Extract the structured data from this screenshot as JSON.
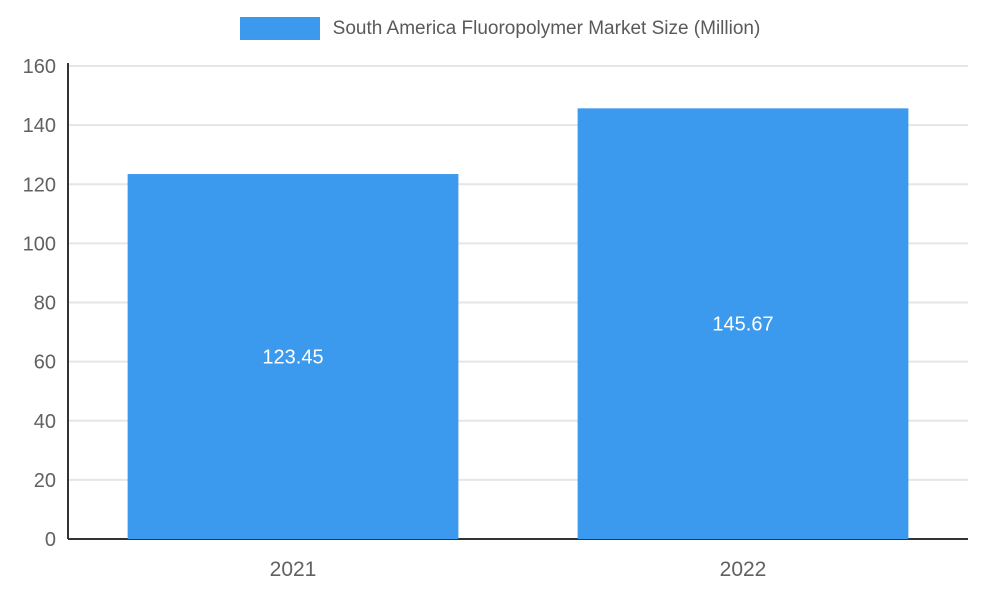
{
  "chart_data": {
    "type": "bar",
    "title": "South America Fluoropolymer Market Size (Million)",
    "categories": [
      "2021",
      "2022"
    ],
    "series": [
      {
        "name": "South America Fluoropolymer Market Size (Million)",
        "values": [
          123.45,
          145.67
        ]
      }
    ],
    "value_labels": [
      "123.45",
      "145.67"
    ],
    "xlabel": "",
    "ylabel": "",
    "ylim": [
      0,
      160
    ],
    "ytick_step": 20,
    "ytick_labels": [
      "0",
      "20",
      "40",
      "60",
      "80",
      "100",
      "120",
      "140",
      "160"
    ],
    "grid": true,
    "legend_position": "top",
    "colors": {
      "bar": "#3b99ee",
      "value_label": "#ffffff",
      "axis_text": "#616161",
      "title_text": "#595959",
      "grid_line": "#e6e6e6",
      "axis_line": "#333333"
    }
  }
}
